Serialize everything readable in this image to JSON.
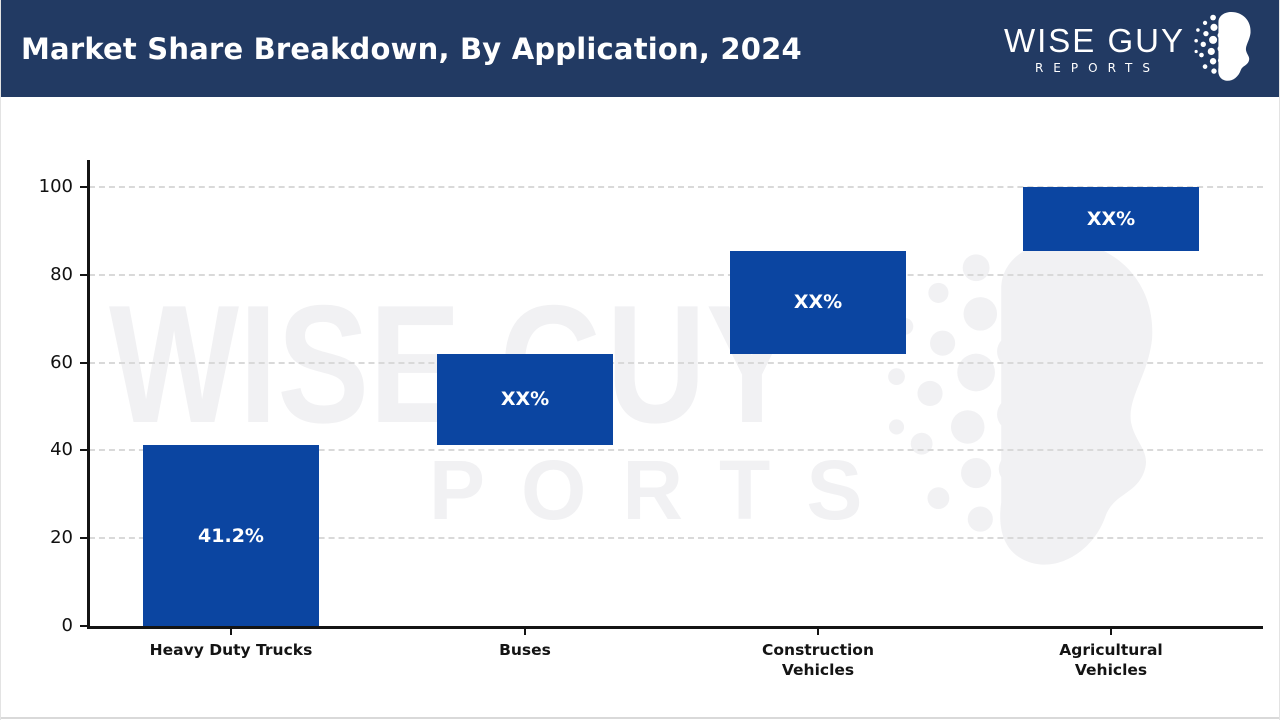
{
  "header": {
    "title": "Market Share Breakdown, By Application, 2024",
    "logo": {
      "primary": "WISE GUY",
      "secondary": "REPORTS"
    }
  },
  "watermark": {
    "primary": "WISE GUY",
    "secondary": "PORTS"
  },
  "chart_data": {
    "type": "bar",
    "subtype": "waterfall-floating-bars",
    "title": "Market Share Breakdown, By Application, 2024",
    "categories": [
      "Heavy Duty Trucks",
      "Buses",
      "Construction Vehicles",
      "Agricultural Vehicles"
    ],
    "category_label_lines": [
      [
        "Heavy Duty Trucks"
      ],
      [
        "Buses"
      ],
      [
        "Construction",
        "Vehicles"
      ],
      [
        "Agricultural",
        "Vehicles"
      ]
    ],
    "segments": [
      {
        "category": "Heavy Duty Trucks",
        "start": 0,
        "end": 41.2,
        "label": "41.2%"
      },
      {
        "category": "Buses",
        "start": 41.2,
        "end": 62,
        "label": "XX%"
      },
      {
        "category": "Construction Vehicles",
        "start": 62,
        "end": 85.5,
        "label": "XX%"
      },
      {
        "category": "Agricultural Vehicles",
        "start": 85.5,
        "end": 100,
        "label": "XX%"
      }
    ],
    "yticks": [
      0,
      20,
      40,
      60,
      80,
      100
    ],
    "ylim": [
      0,
      105
    ],
    "grid": "horizontal-dashed",
    "legend": "none",
    "bar_color": "#0b45a1",
    "bar_label_color": "#ffffff",
    "xlabel": "",
    "ylabel": ""
  },
  "colors": {
    "header_bg": "#223a63",
    "bar": "#0b45a1",
    "watermark": "#f1f1f3",
    "grid": "#d9d9d9",
    "axis": "#141414"
  }
}
